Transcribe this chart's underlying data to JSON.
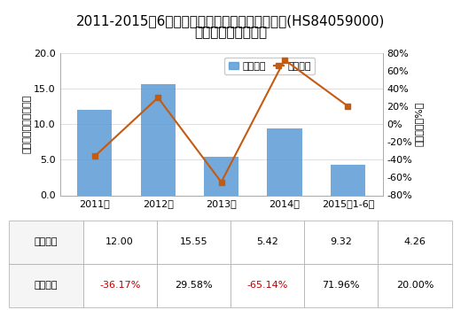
{
  "title_line1": "2011-2015年6月煤气、乙孔等气体发生器的零件(HS84059000)",
  "title_line2": "出口总额及增速统计",
  "categories": [
    "2011年",
    "2012年",
    "2013年",
    "2014年",
    "2015年1-6月"
  ],
  "export_values": [
    12.0,
    15.55,
    5.42,
    9.32,
    4.26
  ],
  "growth_values": [
    -36.17,
    29.58,
    -65.14,
    71.96,
    20.0
  ],
  "bar_color": "#5B9BD5",
  "line_color": "#C55A11",
  "marker_color": "#C55A11",
  "ylabel_left": "出口金额（百万美元）",
  "ylabel_right": "同比增速（%）",
  "ylim_left": [
    0,
    20.0
  ],
  "ylim_right": [
    -80,
    80
  ],
  "yticks_left": [
    0.0,
    5.0,
    10.0,
    15.0,
    20.0
  ],
  "yticks_right": [
    -80,
    -60,
    -40,
    -20,
    0,
    20,
    40,
    60,
    80
  ],
  "ytick_labels_right": [
    "-80%",
    "-60%",
    "-40%",
    "-20%",
    "0%",
    "20%",
    "40%",
    "60%",
    "80%"
  ],
  "legend_bar_label": "出口金额",
  "legend_line_label": "同比增长",
  "table_row1_label": "出口金额",
  "table_row2_label": "同比增长",
  "table_row1_values": [
    "12.00",
    "15.55",
    "5.42",
    "9.32",
    "4.26"
  ],
  "table_row2_values": [
    "-36.17%",
    "29.58%",
    "-65.14%",
    "71.96%",
    "20.00%"
  ],
  "background_color": "#FFFFFF",
  "title_fontsize": 11,
  "axis_fontsize": 8,
  "table_fontsize": 8
}
